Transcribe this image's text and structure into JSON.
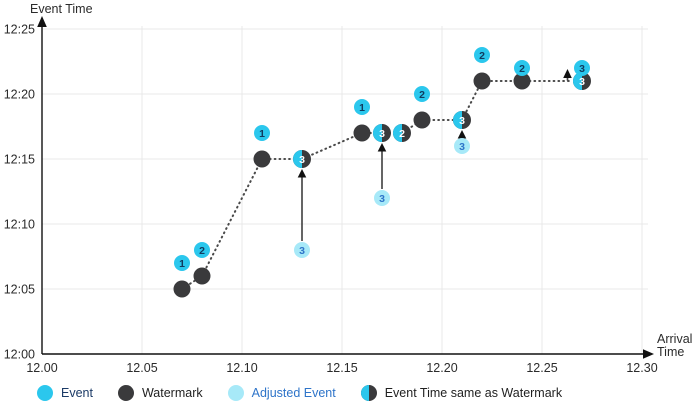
{
  "chart_data": {
    "type": "scatter",
    "title": "",
    "ylabel": "Event Time",
    "xlabel_line1": "Arrival",
    "xlabel_line2": "Time",
    "x_ticks": [
      "12.00",
      "12.05",
      "12.10",
      "12.15",
      "12.20",
      "12.25",
      "12.30"
    ],
    "y_ticks": [
      "12:00",
      "12:05",
      "12:10",
      "12:15",
      "12:20",
      "12:25"
    ],
    "grid": true,
    "legend_position": "bottom",
    "legend": [
      {
        "label": "Event",
        "swatch": "event",
        "text_color": "#1b3a66"
      },
      {
        "label": "Watermark",
        "swatch": "watermark",
        "text_color": "#1f1f1f"
      },
      {
        "label": "Adjusted Event",
        "swatch": "adjusted",
        "text_color": "#2e74c9"
      },
      {
        "label": "Event Time same as Watermark",
        "swatch": "half",
        "text_color": "#1f1f1f"
      }
    ],
    "events": [
      {
        "label": "1",
        "arrival": "12.07",
        "event_time": "12:07"
      },
      {
        "label": "2",
        "arrival": "12.08",
        "event_time": "12:08"
      },
      {
        "label": "1",
        "arrival": "12.11",
        "event_time": "12:17"
      },
      {
        "label": "1",
        "arrival": "12.16",
        "event_time": "12:19"
      },
      {
        "label": "2",
        "arrival": "12.19",
        "event_time": "12:20"
      },
      {
        "label": "2",
        "arrival": "12.22",
        "event_time": "12:23"
      },
      {
        "label": "2",
        "arrival": "12.24",
        "event_time": "12:22"
      },
      {
        "label": "3",
        "arrival": "12.27",
        "event_time": "12:22"
      }
    ],
    "watermarks": [
      {
        "arrival": "12.07",
        "event_time": "12:05"
      },
      {
        "arrival": "12.08",
        "event_time": "12:06"
      },
      {
        "arrival": "12.11",
        "event_time": "12:15"
      },
      {
        "arrival": "12.16",
        "event_time": "12:17"
      },
      {
        "arrival": "12.19",
        "event_time": "12:18"
      },
      {
        "arrival": "12.22",
        "event_time": "12:21"
      },
      {
        "arrival": "12.24",
        "event_time": "12:21"
      }
    ],
    "same_as_watermark": [
      {
        "label": "3",
        "arrival": "12.13",
        "event_time": "12:15"
      },
      {
        "label": "3",
        "arrival": "12.17",
        "event_time": "12:17"
      },
      {
        "label": "2",
        "arrival": "12.18",
        "event_time": "12:17"
      },
      {
        "label": "3",
        "arrival": "12.21",
        "event_time": "12:18"
      },
      {
        "label": "3",
        "arrival": "12.27",
        "event_time": "12:21"
      }
    ],
    "adjusted_events": [
      {
        "label": "3",
        "arrival": "12.13",
        "original_event_time": "12:08",
        "adjusted_event_time": "12:15"
      },
      {
        "label": "3",
        "arrival": "12.17",
        "original_event_time": "12:12",
        "adjusted_event_time": "12:17"
      },
      {
        "label": "3",
        "arrival": "12.21",
        "original_event_time": "12:16",
        "adjusted_event_time": "12:18"
      }
    ],
    "watermark_line": [
      [
        "12.07",
        "12:05"
      ],
      [
        "12.08",
        "12:06"
      ],
      [
        "12.11",
        "12:15"
      ],
      [
        "12.13",
        "12:15"
      ],
      [
        "12.16",
        "12:17"
      ],
      [
        "12.17",
        "12:17"
      ],
      [
        "12.18",
        "12:17"
      ],
      [
        "12.19",
        "12:18"
      ],
      [
        "12.21",
        "12:18"
      ],
      [
        "12.22",
        "12:21"
      ],
      [
        "12.24",
        "12:21"
      ],
      [
        "12.265",
        "12:21"
      ]
    ],
    "watermark_advance_arrow": {
      "arrival": "12.266",
      "from_time": "12:21",
      "to_time": "12:22"
    }
  },
  "colors": {
    "event_fill": "#2bc7ed",
    "event_number": "#113a5e",
    "watermark_fill": "#3a3a3c",
    "adjusted_fill": "#a7e9f8",
    "adjusted_number": "#2e74c9",
    "half_number": "#ffffff",
    "grid": "#e8e8e8",
    "axis": "#111111",
    "tick_text": "#2b2b2b",
    "dotted_line": "#4a4a4a",
    "arrow": "#4a4a4a",
    "arrow_head": "#111111"
  }
}
